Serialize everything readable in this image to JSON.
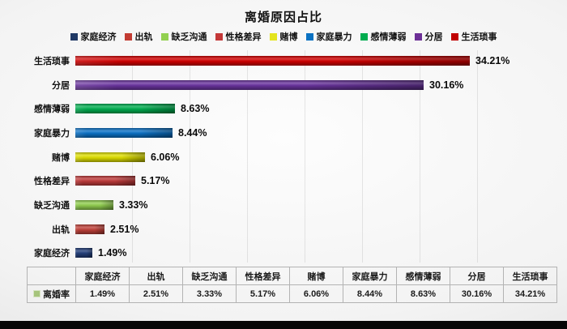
{
  "title": "离婚原因占比",
  "legend": {
    "items": [
      {
        "label": "家庭经济",
        "color": "#1F3864"
      },
      {
        "label": "出轨",
        "color": "#C23B32"
      },
      {
        "label": "缺乏沟通",
        "color": "#92D050"
      },
      {
        "label": "性格差异",
        "color": "#C43838"
      },
      {
        "label": "赌博",
        "color": "#E4E41E"
      },
      {
        "label": "家庭暴力",
        "color": "#0B72C2"
      },
      {
        "label": "感情薄弱",
        "color": "#00AC4F"
      },
      {
        "label": "分居",
        "color": "#6C2F96"
      },
      {
        "label": "生活琐事",
        "color": "#C00000"
      }
    ]
  },
  "chart_data": {
    "type": "bar",
    "orientation": "horizontal",
    "title": "离婚原因占比",
    "series_name": "离婚率",
    "categories": [
      "生活琐事",
      "分居",
      "感情薄弱",
      "家庭暴力",
      "赌博",
      "性格差异",
      "缺乏沟通",
      "出轨",
      "家庭经济"
    ],
    "values": [
      34.21,
      30.16,
      8.63,
      8.44,
      6.06,
      5.17,
      3.33,
      2.51,
      1.49
    ],
    "xlim": [
      0,
      35
    ],
    "grid": "vertical, every 5%",
    "legend_position": "top",
    "rows": [
      {
        "category": "生活琐事",
        "value": 34.21,
        "label": "34.21%",
        "color": "#D40000"
      },
      {
        "category": "分居",
        "value": 30.16,
        "label": "30.16%",
        "color": "#6B34A0"
      },
      {
        "category": "感情薄弱",
        "value": 8.63,
        "label": "8.63%",
        "color": "#00B050"
      },
      {
        "category": "家庭暴力",
        "value": 8.44,
        "label": "8.44%",
        "color": "#0B72C8"
      },
      {
        "category": "赌博",
        "value": 6.06,
        "label": "6.06%",
        "color": "#E0E000"
      },
      {
        "category": "性格差异",
        "value": 5.17,
        "label": "5.17%",
        "color": "#C03A3A"
      },
      {
        "category": "缺乏沟通",
        "value": 3.33,
        "label": "3.33%",
        "color": "#92D050"
      },
      {
        "category": "出轨",
        "value": 2.51,
        "label": "2.51%",
        "color": "#C2423A"
      },
      {
        "category": "家庭经济",
        "value": 1.49,
        "label": "1.49%",
        "color": "#24407C"
      }
    ]
  },
  "table": {
    "row_label": "离婚率",
    "marker_color": "#A6C47C",
    "headers": [
      "家庭经济",
      "出轨",
      "缺乏沟通",
      "性格差异",
      "赌博",
      "家庭暴力",
      "感情薄弱",
      "分居",
      "生活琐事"
    ],
    "values": [
      "1.49%",
      "2.51%",
      "3.33%",
      "5.17%",
      "6.06%",
      "8.44%",
      "8.63%",
      "30.16%",
      "34.21%"
    ]
  }
}
